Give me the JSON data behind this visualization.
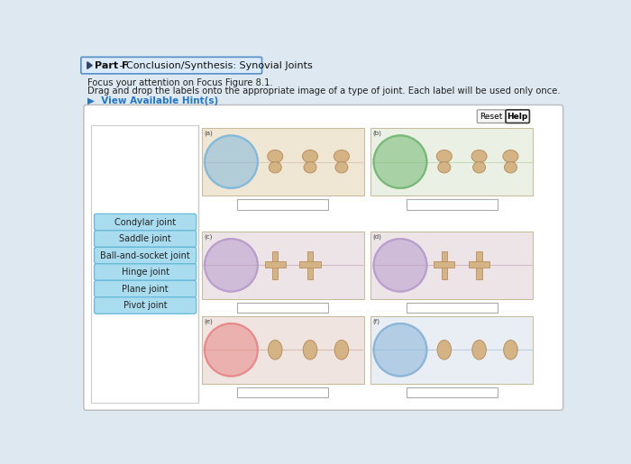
{
  "title_bold": "Part F",
  "title_rest": " - Conclusion/Synthesis: Synovial Joints",
  "instruction_line1": "Focus your attention on Focus Figure 8.1.",
  "instruction_line2": "Drag and drop the labels onto the appropriate image of a type of joint. Each label will be used only once.",
  "hint_text": "▶  View Available Hint(s)",
  "hint_color": "#2277cc",
  "bg_outer": "#dde8f0",
  "bg_main_panel": "#ffffff",
  "bg_left_panel": "#ffffff",
  "border_main": "#bbbbbb",
  "border_left": "#cccccc",
  "button_labels": [
    "Condylar joint",
    "Saddle joint",
    "Ball-and-socket joint",
    "Hinge joint",
    "Plane joint",
    "Pivot joint"
  ],
  "button_color": "#aadcef",
  "button_border": "#66b8d8",
  "button_text_color": "#222222",
  "reset_label": "Reset",
  "help_label": "Help",
  "top_bar_bg": "#daeaf8",
  "top_bar_border": "#5590c8",
  "arrow_color": "#334466",
  "panels": [
    {
      "circle_color": "#7fb8dc",
      "circle_alpha": 0.35,
      "bg": "#f0e6d4",
      "stripe": "#d4c4aa"
    },
    {
      "circle_color": "#74b874",
      "circle_alpha": 0.35,
      "bg": "#eaf0e4",
      "stripe": "#b8d4a8"
    },
    {
      "circle_color": "#b89ccc",
      "circle_alpha": 0.35,
      "bg": "#ede4e8",
      "stripe": "#c8aab8"
    },
    {
      "circle_color": "#b89ccc",
      "circle_alpha": 0.35,
      "bg": "#ede4e8",
      "stripe": "#c8aab8"
    },
    {
      "circle_color": "#e88888",
      "circle_alpha": 0.35,
      "bg": "#f0e4e0",
      "stripe": "#d4b0a0"
    },
    {
      "circle_color": "#88b4d8",
      "circle_alpha": 0.35,
      "bg": "#e8eef4",
      "stripe": "#a8c0d8"
    }
  ],
  "drop_box_bg": "#ffffff",
  "drop_box_border": "#aaaaaa",
  "divider_color": "#cccccc"
}
